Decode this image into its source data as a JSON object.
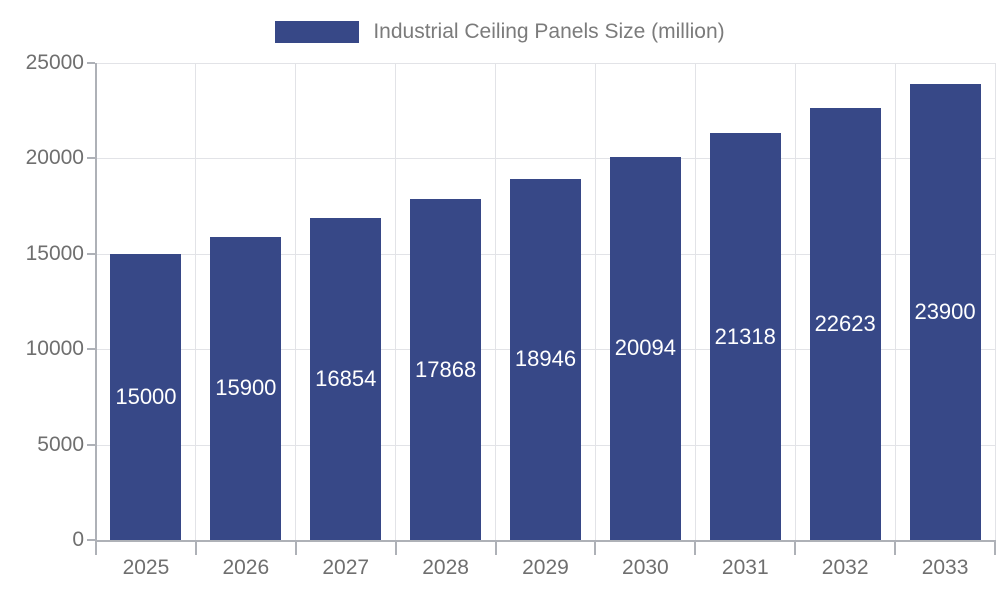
{
  "legend": {
    "position": "top",
    "items": [
      {
        "label": "Industrial Ceiling Panels Size (million)",
        "color": "#374887"
      }
    ]
  },
  "chart_data": {
    "type": "bar",
    "title": "Industrial Ceiling Panels Size (million)",
    "series_name": "Industrial Ceiling Panels Size (million)",
    "categories": [
      "2025",
      "2026",
      "2027",
      "2028",
      "2029",
      "2030",
      "2031",
      "2032",
      "2033"
    ],
    "values": [
      15000,
      15900,
      16854,
      17868,
      18946,
      20094,
      21318,
      22623,
      23900
    ],
    "xlabel": "",
    "ylabel": "",
    "ylim": [
      0,
      25000
    ],
    "yticks": [
      0,
      5000,
      10000,
      15000,
      20000,
      25000
    ],
    "grid": true,
    "legend_position": "top",
    "bar_color": "#374887",
    "bar_label_color": "#ffffff",
    "grid_color": "#e2e3e7",
    "axis_color": "#aeb1b7",
    "tick_label_color": "#6f6f6f",
    "title_color": "#7b7b7b"
  }
}
